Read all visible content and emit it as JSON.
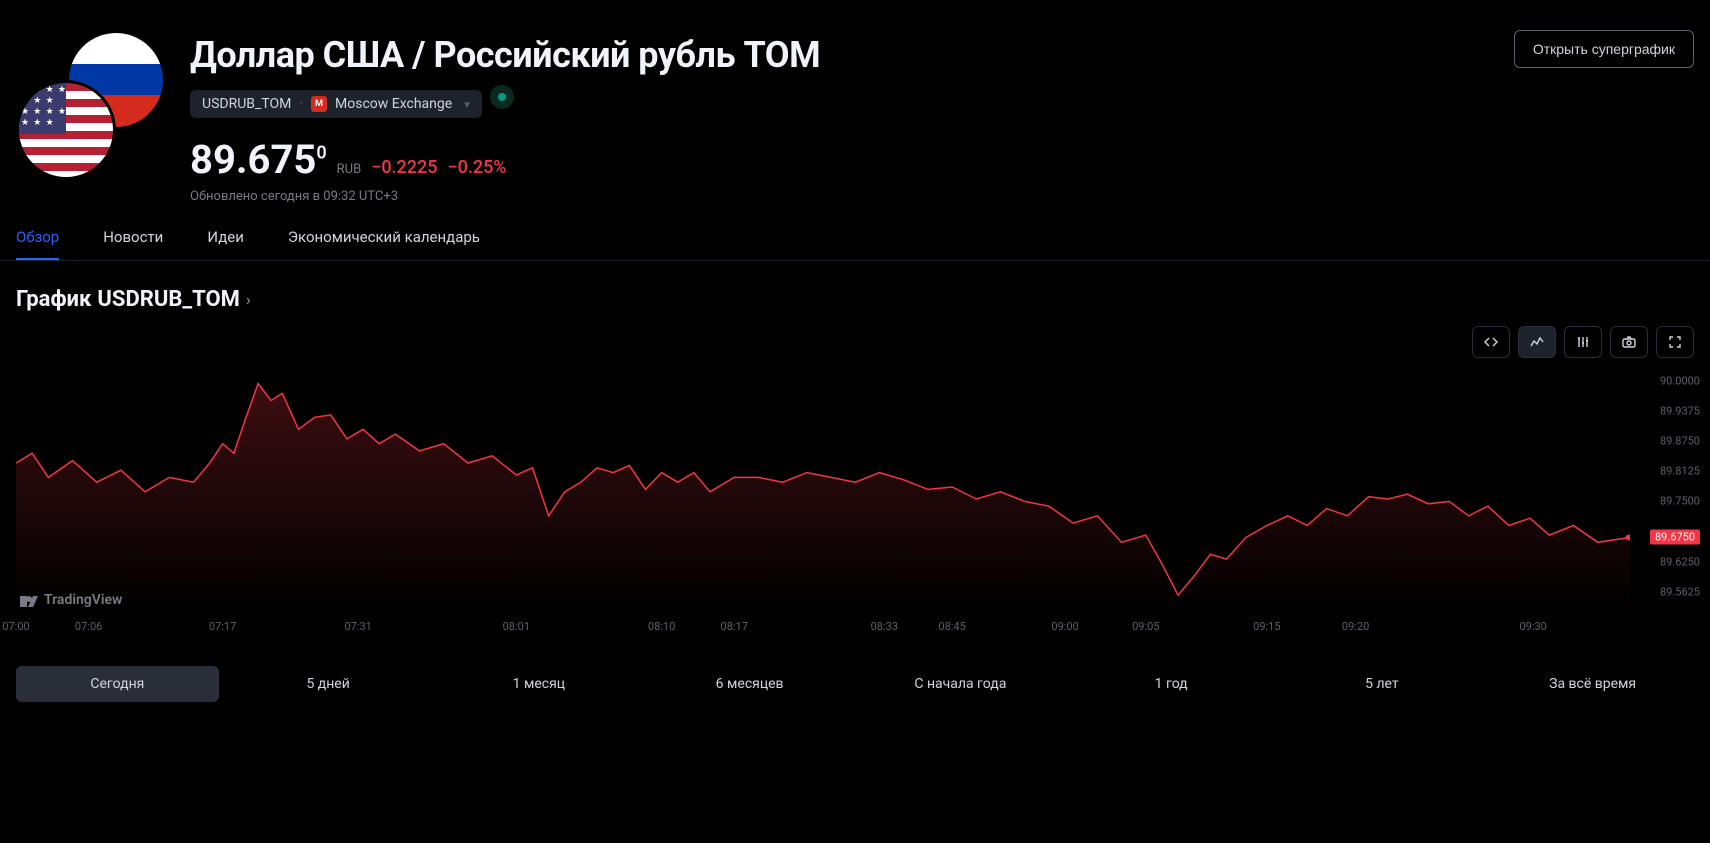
{
  "header": {
    "title": "Доллар США / Российский рубль TOM",
    "ticker": "USDRUB_TOM",
    "exchange": "Moscow Exchange",
    "cta": "Открыть суперграфик"
  },
  "price": {
    "main": "89.675",
    "decimal": "0",
    "currency": "RUB",
    "change": "−0.2225",
    "change_pct": "−0.25%",
    "change_color": "#f23645",
    "updated": "Обновлено сегодня в 09:32 UTC+3"
  },
  "tabs": [
    {
      "label": "Обзор",
      "active": true
    },
    {
      "label": "Новости",
      "active": false
    },
    {
      "label": "Идеи",
      "active": false
    },
    {
      "label": "Экономический календарь",
      "active": false
    }
  ],
  "chart": {
    "title_prefix": "График",
    "title_symbol": "USDRUB_TOM",
    "brand": "TradingView",
    "line_color": "#f23645",
    "fill_top": "rgba(242,54,69,0.22)",
    "fill_bottom": "rgba(242,54,69,0)",
    "background": "#000000",
    "grid_color": "#1e222d",
    "ylim": [
      89.52,
      90.04
    ],
    "yticks": [
      {
        "v": 90.0,
        "label": "90.0000"
      },
      {
        "v": 89.9375,
        "label": "89.9375"
      },
      {
        "v": 89.875,
        "label": "89.8750"
      },
      {
        "v": 89.8125,
        "label": "89.8125"
      },
      {
        "v": 89.75,
        "label": "89.7500"
      },
      {
        "v": 89.625,
        "label": "89.6250"
      },
      {
        "v": 89.5625,
        "label": "89.5625"
      }
    ],
    "last_value": 89.675,
    "last_label": "89.6750",
    "xticks": [
      {
        "t": 0.0,
        "label": "07:00"
      },
      {
        "t": 0.045,
        "label": "07:06"
      },
      {
        "t": 0.128,
        "label": "07:17"
      },
      {
        "t": 0.212,
        "label": "07:31"
      },
      {
        "t": 0.31,
        "label": "08:01"
      },
      {
        "t": 0.4,
        "label": "08:10"
      },
      {
        "t": 0.445,
        "label": "08:17"
      },
      {
        "t": 0.538,
        "label": "08:33"
      },
      {
        "t": 0.58,
        "label": "08:45"
      },
      {
        "t": 0.65,
        "label": "09:00"
      },
      {
        "t": 0.7,
        "label": "09:05"
      },
      {
        "t": 0.775,
        "label": "09:15"
      },
      {
        "t": 0.83,
        "label": "09:20"
      },
      {
        "t": 0.94,
        "label": "09:30"
      }
    ],
    "series": [
      [
        0.0,
        89.83
      ],
      [
        0.01,
        89.85
      ],
      [
        0.02,
        89.8
      ],
      [
        0.035,
        89.835
      ],
      [
        0.05,
        89.79
      ],
      [
        0.065,
        89.815
      ],
      [
        0.08,
        89.77
      ],
      [
        0.095,
        89.8
      ],
      [
        0.11,
        89.79
      ],
      [
        0.12,
        89.83
      ],
      [
        0.128,
        89.87
      ],
      [
        0.135,
        89.85
      ],
      [
        0.142,
        89.92
      ],
      [
        0.15,
        89.995
      ],
      [
        0.158,
        89.96
      ],
      [
        0.165,
        89.975
      ],
      [
        0.175,
        89.9
      ],
      [
        0.185,
        89.925
      ],
      [
        0.195,
        89.93
      ],
      [
        0.205,
        89.88
      ],
      [
        0.215,
        89.9
      ],
      [
        0.225,
        89.87
      ],
      [
        0.235,
        89.89
      ],
      [
        0.25,
        89.855
      ],
      [
        0.265,
        89.87
      ],
      [
        0.28,
        89.83
      ],
      [
        0.295,
        89.845
      ],
      [
        0.31,
        89.805
      ],
      [
        0.32,
        89.82
      ],
      [
        0.33,
        89.72
      ],
      [
        0.34,
        89.77
      ],
      [
        0.35,
        89.79
      ],
      [
        0.36,
        89.82
      ],
      [
        0.37,
        89.81
      ],
      [
        0.38,
        89.825
      ],
      [
        0.39,
        89.775
      ],
      [
        0.4,
        89.81
      ],
      [
        0.41,
        89.79
      ],
      [
        0.42,
        89.81
      ],
      [
        0.43,
        89.77
      ],
      [
        0.445,
        89.8
      ],
      [
        0.46,
        89.8
      ],
      [
        0.475,
        89.79
      ],
      [
        0.49,
        89.81
      ],
      [
        0.505,
        89.8
      ],
      [
        0.52,
        89.79
      ],
      [
        0.535,
        89.81
      ],
      [
        0.55,
        89.795
      ],
      [
        0.565,
        89.775
      ],
      [
        0.58,
        89.78
      ],
      [
        0.595,
        89.755
      ],
      [
        0.61,
        89.77
      ],
      [
        0.625,
        89.75
      ],
      [
        0.64,
        89.74
      ],
      [
        0.655,
        89.705
      ],
      [
        0.67,
        89.72
      ],
      [
        0.685,
        89.665
      ],
      [
        0.7,
        89.68
      ],
      [
        0.71,
        89.62
      ],
      [
        0.72,
        89.555
      ],
      [
        0.73,
        89.595
      ],
      [
        0.74,
        89.64
      ],
      [
        0.75,
        89.63
      ],
      [
        0.762,
        89.675
      ],
      [
        0.775,
        89.7
      ],
      [
        0.788,
        89.72
      ],
      [
        0.8,
        89.7
      ],
      [
        0.812,
        89.735
      ],
      [
        0.825,
        89.72
      ],
      [
        0.838,
        89.76
      ],
      [
        0.85,
        89.755
      ],
      [
        0.862,
        89.765
      ],
      [
        0.875,
        89.745
      ],
      [
        0.888,
        89.75
      ],
      [
        0.9,
        89.72
      ],
      [
        0.912,
        89.74
      ],
      [
        0.925,
        89.7
      ],
      [
        0.938,
        89.715
      ],
      [
        0.95,
        89.68
      ],
      [
        0.965,
        89.7
      ],
      [
        0.98,
        89.665
      ],
      [
        1.0,
        89.675
      ]
    ]
  },
  "ranges": [
    {
      "label": "Сегодня",
      "active": true
    },
    {
      "label": "5 дней",
      "active": false
    },
    {
      "label": "1 месяц",
      "active": false
    },
    {
      "label": "6 месяцев",
      "active": false
    },
    {
      "label": "С начала года",
      "active": false
    },
    {
      "label": "1 год",
      "active": false
    },
    {
      "label": "5 лет",
      "active": false
    },
    {
      "label": "За всё время",
      "active": false
    }
  ]
}
